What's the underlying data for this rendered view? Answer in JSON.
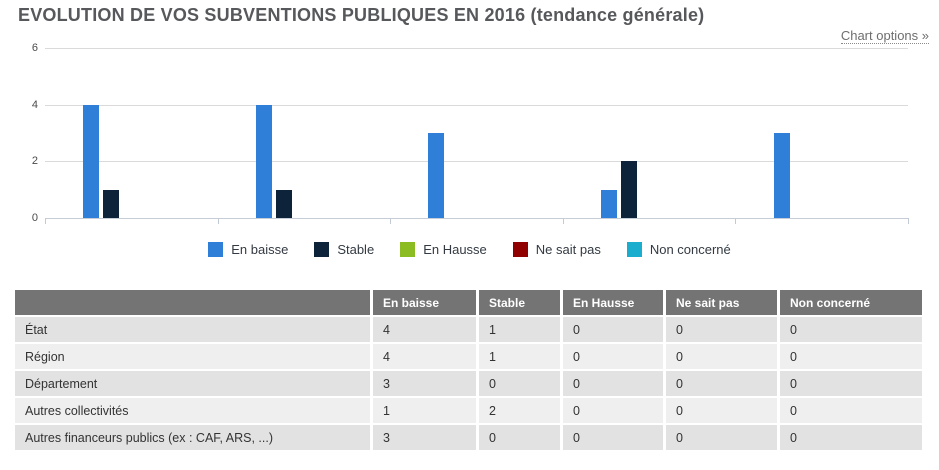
{
  "page": {
    "title": "EVOLUTION DE VOS SUBVENTIONS PUBLIQUES EN 2016 (tendance générale)",
    "chart_options_label": "Chart options »"
  },
  "chart_data": {
    "type": "bar",
    "title": "EVOLUTION DE VOS SUBVENTIONS PUBLIQUES EN 2016 (tendance générale)",
    "categories": [
      "État",
      "Région",
      "Département",
      "Autres collectivités",
      "Autres financeurs publics (ex : CAF, ARS, ...)"
    ],
    "series": [
      {
        "name": "En baisse",
        "color": "#2f7ed8",
        "values": [
          4,
          4,
          3,
          1,
          3
        ]
      },
      {
        "name": "Stable",
        "color": "#0d233a",
        "values": [
          1,
          1,
          0,
          2,
          0
        ]
      },
      {
        "name": "En Hausse",
        "color": "#8bbc21",
        "values": [
          0,
          0,
          0,
          0,
          0
        ]
      },
      {
        "name": "Ne sait pas",
        "color": "#910000",
        "values": [
          0,
          0,
          0,
          0,
          0
        ]
      },
      {
        "name": "Non concerné",
        "color": "#1aadce",
        "values": [
          0,
          0,
          0,
          0,
          0
        ]
      }
    ],
    "xlabel": "",
    "ylabel": "",
    "ylim": [
      0,
      6
    ],
    "yticks": [
      0,
      2,
      4,
      6
    ],
    "grid": true,
    "legend_position": "bottom"
  },
  "table": {
    "headers": [
      "",
      "En baisse",
      "Stable",
      "En Hausse",
      "Ne sait pas",
      "Non concerné"
    ],
    "rows": [
      {
        "label": "État",
        "values": [
          "4",
          "1",
          "0",
          "0",
          "0"
        ]
      },
      {
        "label": "Région",
        "values": [
          "4",
          "1",
          "0",
          "0",
          "0"
        ]
      },
      {
        "label": "Département",
        "values": [
          "3",
          "0",
          "0",
          "0",
          "0"
        ]
      },
      {
        "label": "Autres collectivités",
        "values": [
          "1",
          "2",
          "0",
          "0",
          "0"
        ]
      },
      {
        "label": "Autres financeurs publics (ex : CAF, ARS, ...)",
        "values": [
          "3",
          "0",
          "0",
          "0",
          "0"
        ]
      }
    ]
  },
  "colors": {
    "title_text": "#57585b",
    "link_text": "#6e6e6e",
    "gridline": "#dadada",
    "axis_line": "#c7cdd6",
    "table_header_bg": "#747474",
    "table_row_odd_bg": "#e2e2e2",
    "table_row_even_bg": "#efefef"
  }
}
